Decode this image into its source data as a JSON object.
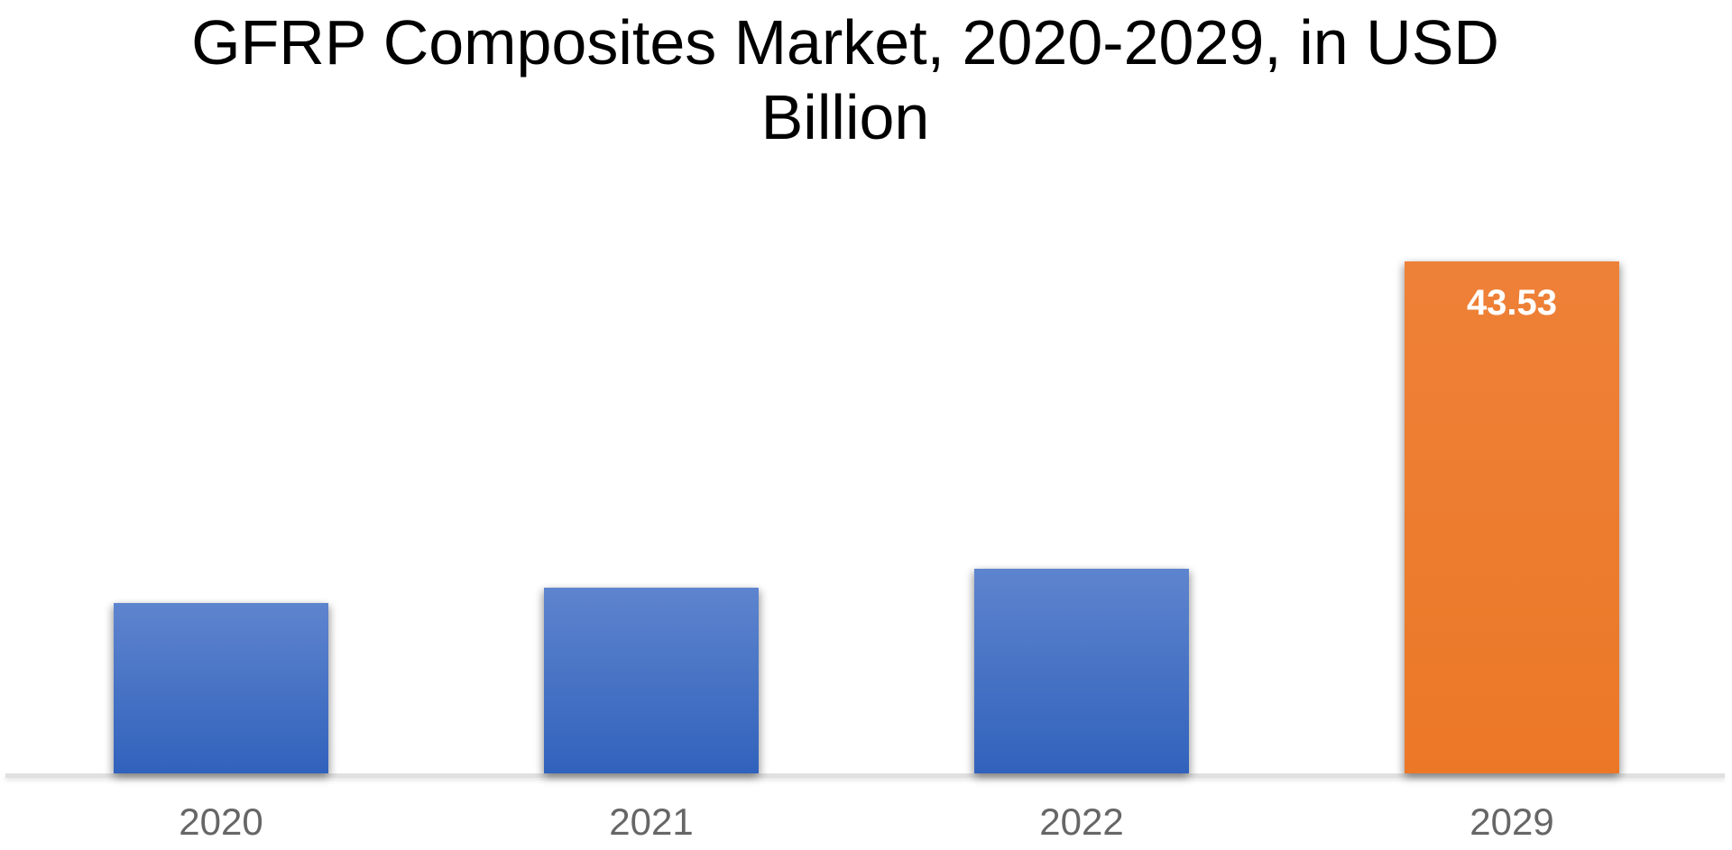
{
  "page": {
    "background": "#ffffff"
  },
  "chart_data": {
    "type": "bar",
    "title": "GFRP Composites Market, 2020-2029, in USD Billion",
    "title_lines": [
      "GFRP Composites Market, 2020-2029, in USD",
      "Billion"
    ],
    "categories": [
      "2020",
      "2021",
      "2022",
      "2029"
    ],
    "values": [
      14.5,
      15.8,
      17.4,
      43.53
    ],
    "data_labels": [
      "",
      "",
      "",
      "43.53"
    ],
    "highlight_index": 3,
    "unit": "USD Billion",
    "xlabel": "",
    "ylabel": "",
    "ylim": [
      0,
      45
    ],
    "axis": {
      "x_axis_line_visible": true,
      "y_axis_visible": false,
      "gridlines": false
    },
    "legend": {
      "visible": false
    },
    "colors": {
      "bar_blue": "#4472c4",
      "bar_blue_gradient_top": "#5e84ce",
      "bar_blue_gradient_bottom": "#3162bc",
      "bar_orange": "#ed7d31",
      "bar_orange_gradient_top": "#ee8138",
      "bar_orange_gradient_bottom": "#ec7827",
      "axis_line": "#e0e0e0",
      "tick_label": "#666666",
      "data_label": "#ffffff",
      "title": "#000000"
    }
  }
}
